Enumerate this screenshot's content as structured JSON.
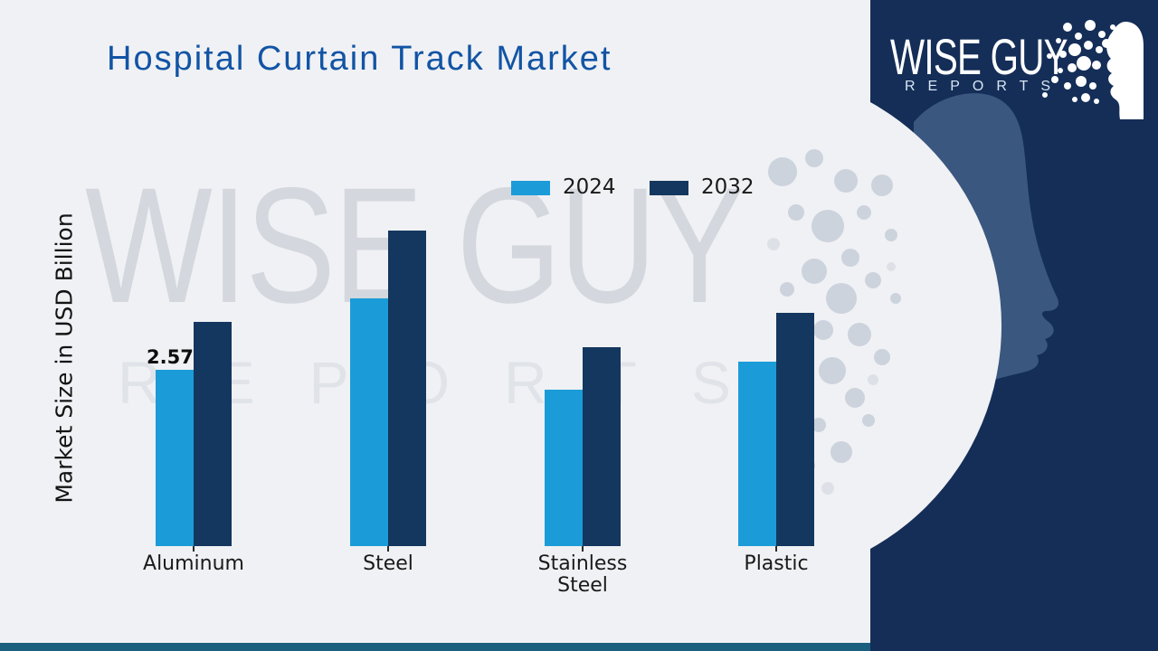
{
  "header": {
    "title": "Hospital Curtain Track Market"
  },
  "axis": {
    "y_label": "Market Size in USD Billion"
  },
  "logo": {
    "line1": "WISE GUY",
    "line2": "REPORTS"
  },
  "watermark": {
    "line1": "WISE GUY",
    "line2": "REPORTS"
  },
  "colors": {
    "series_2024": "#1b9cd9",
    "series_2032": "#14375f",
    "panel_navy": "#142e58",
    "face_shadow": "#3a577f",
    "bottom_teal": "#1a5f7e",
    "title_blue": "#1254a5"
  },
  "chart_data": {
    "type": "bar",
    "title": "Hospital Curtain Track Market",
    "xlabel": "",
    "ylabel": "Market Size in USD Billion",
    "categories": [
      "Aluminum",
      "Steel",
      "Stainless Steel",
      "Plastic"
    ],
    "series": [
      {
        "name": "2024",
        "color": "#1b9cd9",
        "values": [
          2.57,
          3.6,
          2.27,
          2.69
        ]
      },
      {
        "name": "2032",
        "color": "#14375f",
        "values": [
          3.26,
          4.59,
          2.89,
          3.39
        ]
      }
    ],
    "bar_labels": [
      {
        "series": "2024",
        "category": "Aluminum",
        "text": "2.57"
      }
    ],
    "ylim": [
      0,
      5
    ],
    "grid": false,
    "axis_lines": false,
    "legend_position": "top-center"
  }
}
